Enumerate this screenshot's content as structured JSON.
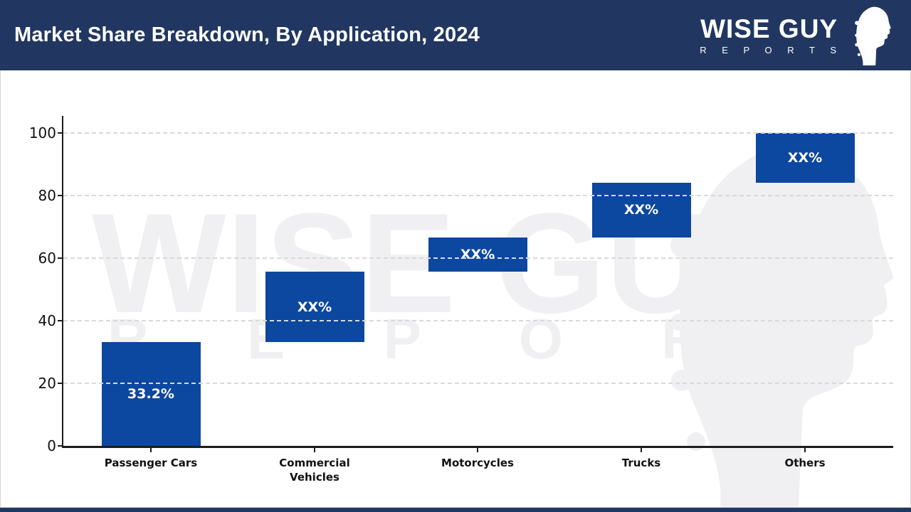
{
  "header": {
    "title": "Market Share Breakdown, By Application, 2024",
    "logo": {
      "line1": "WISE GUY",
      "line2": "R E P O R T S"
    }
  },
  "watermark": {
    "line1": "WISE GUY",
    "line2": "R E P O R T S"
  },
  "chart_data": {
    "type": "bar",
    "subtype": "waterfall",
    "title": "Market Share Breakdown, By Application, 2024",
    "categories": [
      [
        "Passenger Cars"
      ],
      [
        "Commercial",
        "Vehicles"
      ],
      [
        "Motorcycles"
      ],
      [
        "Trucks"
      ],
      [
        "Others"
      ]
    ],
    "segments": [
      {
        "category": "Passenger Cars",
        "start": 0,
        "end": 33.2,
        "label": "33.2%"
      },
      {
        "category": "Commercial Vehicles",
        "start": 33.2,
        "end": 55.6,
        "label": "XX%"
      },
      {
        "category": "Motorcycles",
        "start": 55.6,
        "end": 66.6,
        "label": "XX%"
      },
      {
        "category": "Trucks",
        "start": 66.6,
        "end": 84.1,
        "label": "XX%"
      },
      {
        "category": "Others",
        "start": 84.1,
        "end": 100,
        "label": "XX%"
      }
    ],
    "ylim": [
      0,
      100
    ],
    "yticks": [
      0,
      20,
      40,
      60,
      80,
      100
    ],
    "grid": "horizontal-dashed",
    "legend": "none"
  },
  "colors": {
    "header_bg": "#213761",
    "footer_bg": "#213761",
    "bar": "#0c47a0",
    "bar_label": "#ffffff",
    "grid": "#d9d9d9",
    "axis": "#1c1c1c",
    "tick_text": "#111111",
    "watermark": "#f0f0f2"
  }
}
